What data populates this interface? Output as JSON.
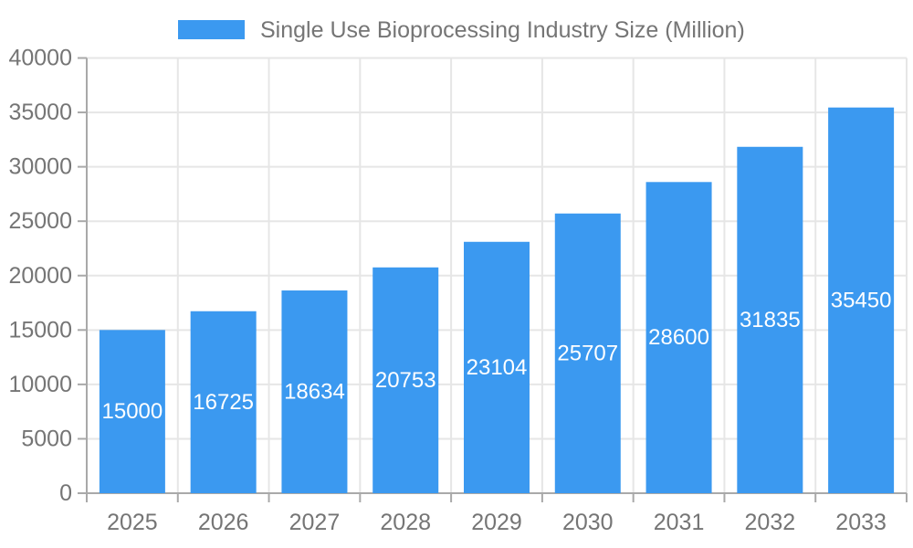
{
  "chart_data": {
    "type": "bar",
    "title": "Single Use Bioprocessing Industry Size (Million)",
    "legend": {
      "label": "Single Use Bioprocessing Industry Size (Million)",
      "position": "top"
    },
    "categories": [
      "2025",
      "2026",
      "2027",
      "2028",
      "2029",
      "2030",
      "2031",
      "2032",
      "2033"
    ],
    "values": [
      15000,
      16725,
      18634,
      20753,
      23104,
      25707,
      28600,
      31835,
      35450
    ],
    "xlabel": "",
    "ylabel": "",
    "ylim": [
      0,
      40000
    ],
    "yticks": [
      0,
      5000,
      10000,
      15000,
      20000,
      25000,
      30000,
      35000,
      40000
    ],
    "grid": true,
    "colors": {
      "bar": "#3b99f0",
      "grid": "#e6e6e6",
      "axis": "#a9a9a9",
      "tick_text": "#757575",
      "legend_text": "#757575",
      "bar_label_text": "#ffffff",
      "background": "#ffffff"
    }
  }
}
